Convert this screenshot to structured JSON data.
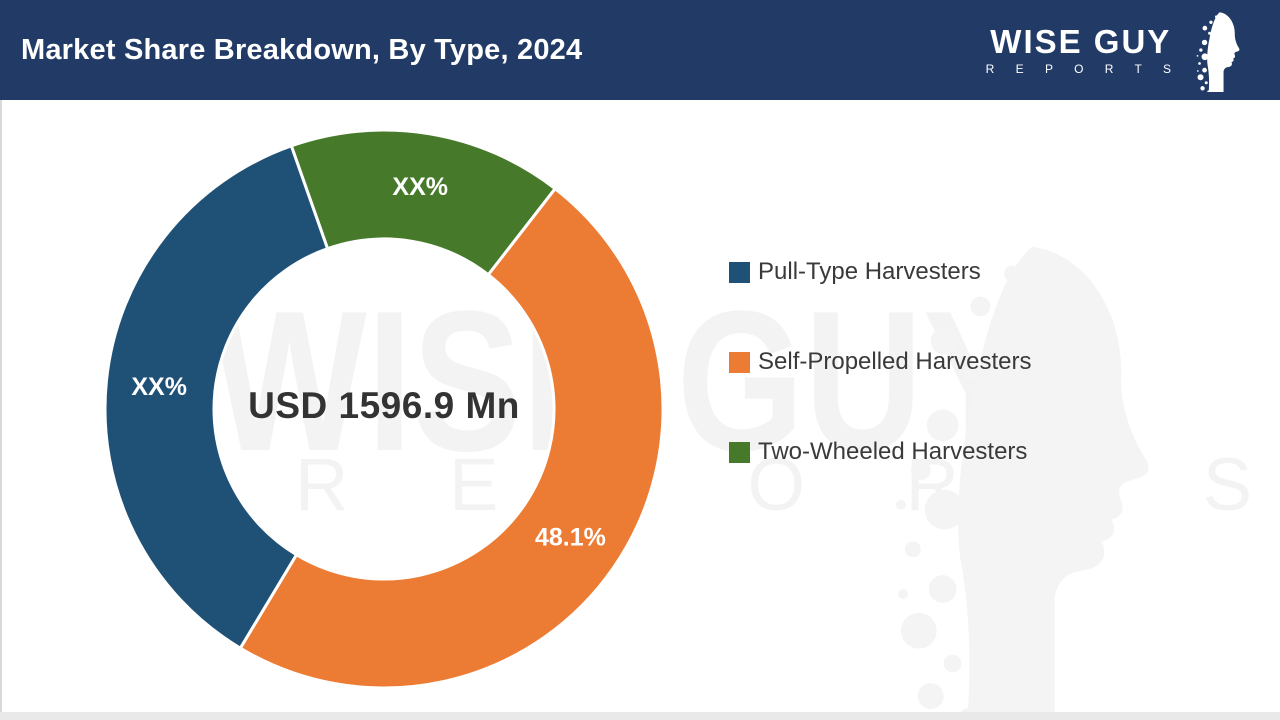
{
  "header": {
    "title": "Market Share Breakdown, By Type, 2024",
    "bg_color": "#213a66",
    "logo": {
      "line1": "WISE GUY",
      "line2": "R E P O R T S"
    }
  },
  "watermark": {
    "line1": "WISE GUY",
    "line2": "R E P O R T S"
  },
  "chart_data": {
    "type": "pie",
    "subtype": "donut",
    "title": "Market Share Breakdown, By Type, 2024",
    "center_label": "USD 1596.9 Mn",
    "units": "percent share of USD 1596.9 Mn",
    "start_angle_deg": -19.4,
    "rotation": "clockwise",
    "legend_position": "right",
    "segments": [
      {
        "label": "Pull-Type Harvesters",
        "display_value": "XX%",
        "value_pct": 36.0,
        "color": "#1f5177"
      },
      {
        "label": "Self-Propelled Harvesters",
        "display_value": "48.1%",
        "value_pct": 48.1,
        "color": "#ec7c33"
      },
      {
        "label": "Two-Wheeled Harvesters",
        "display_value": "XX%",
        "value_pct": 15.9,
        "color": "#467a2a"
      }
    ]
  }
}
